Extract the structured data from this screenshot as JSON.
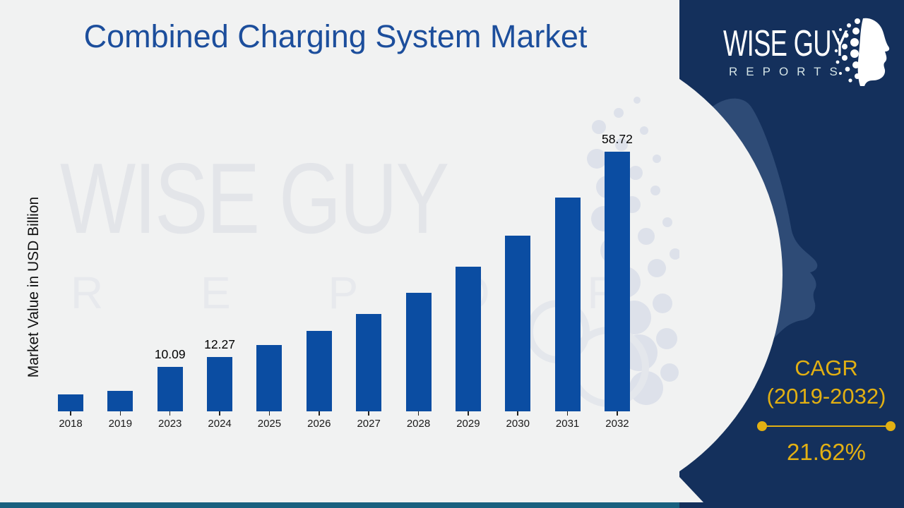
{
  "title": "Combined Charging System Market",
  "watermark": {
    "line1": "WISE GUY",
    "line2": "R E P O R T S"
  },
  "logo": {
    "brand": "WISE GUY",
    "sub": "REPORTS"
  },
  "cagr": {
    "heading": "CAGR",
    "range": "(2019-2032)",
    "value": "21.62%"
  },
  "colors": {
    "background": "#f1f2f2",
    "title_blue": "#1c4e9c",
    "bar_blue": "#0b4da2",
    "panel_navy": "#14305c",
    "panel_face_navy": "#2e4b76",
    "gold": "#e2b013",
    "teal_strip": "#19607f",
    "watermark_gray": "#e3e5e9"
  },
  "chart_data": {
    "type": "bar",
    "title": "Combined Charging System Market",
    "xlabel": "",
    "ylabel": "Market Value in USD Billion",
    "categories": [
      "2018",
      "2019",
      "2023",
      "2024",
      "2025",
      "2026",
      "2027",
      "2028",
      "2029",
      "2030",
      "2031",
      "2032"
    ],
    "values": [
      3.79,
      4.61,
      10.09,
      12.27,
      14.92,
      18.15,
      22.07,
      26.84,
      32.65,
      39.71,
      48.29,
      58.72
    ],
    "data_labels": [
      "",
      "",
      "10.09",
      "12.27",
      "",
      "",
      "",
      "",
      "",
      "",
      "",
      "58.72"
    ],
    "labeled_points": {
      "2023": 10.09,
      "2024": 12.27,
      "2032": 58.72
    },
    "bar_color": "#0b4da2",
    "ylim": [
      0,
      62
    ],
    "grid": false,
    "legend": "none",
    "note": "values for unlabeled bars estimated from bar heights; consistent with 21.62% CAGR (2019-2032)"
  }
}
